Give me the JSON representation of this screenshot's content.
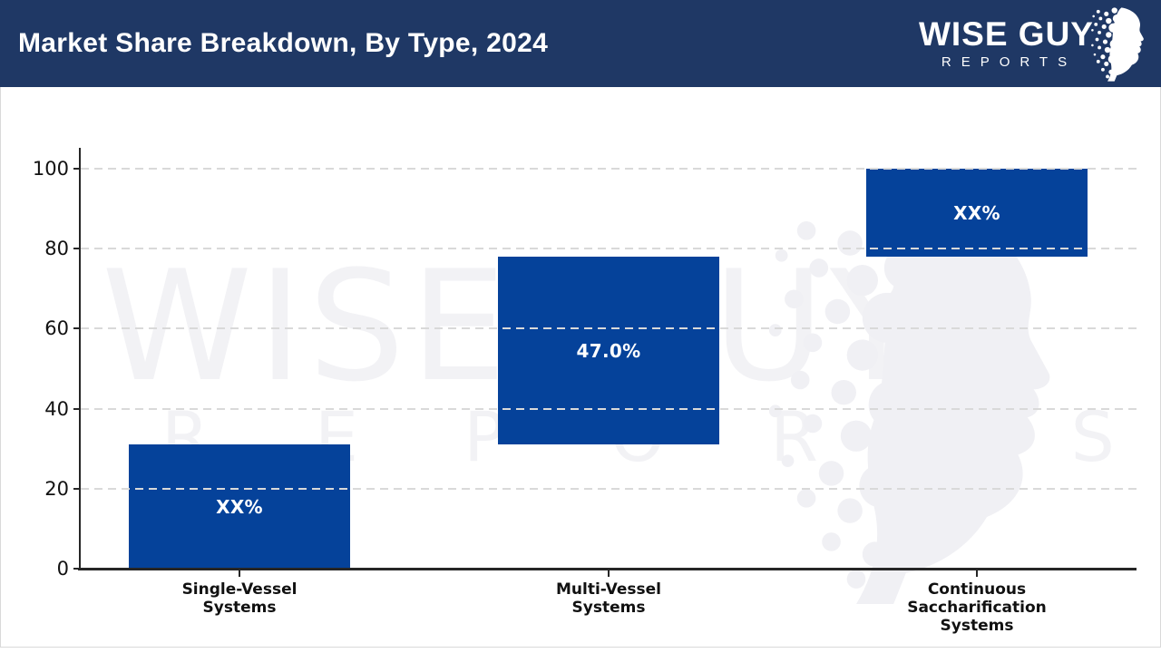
{
  "header": {
    "title": "Market Share Breakdown, By Type, 2024",
    "background": "#1f3865",
    "logo": {
      "wordmark": "WISE GUY",
      "subtitle": "REPORTS"
    }
  },
  "watermark": {
    "wordmark": "WISE GUY",
    "subtitle": "REPORTS"
  },
  "colors": {
    "header_bg": "#1f3865",
    "bar": "#05429a",
    "grid": "#d9d9d9",
    "axis": "#262626",
    "bar_label": "#ffffff",
    "watermark": "#f2f2f5"
  },
  "chart_data": {
    "type": "bar",
    "subtype": "floating-waterfall",
    "title": "Market Share Breakdown, By Type, 2024",
    "categories": [
      "Single-Vessel Systems",
      "Multi-Vessel Systems",
      "Continuous Saccharification Systems"
    ],
    "category_lines": [
      [
        "Single-Vessel",
        "Systems"
      ],
      [
        "Multi-Vessel",
        "Systems"
      ],
      [
        "Continuous",
        "Saccharification",
        "Systems"
      ]
    ],
    "segments": [
      {
        "category": "Single-Vessel Systems",
        "start": 0,
        "end": 31,
        "label": "XX%"
      },
      {
        "category": "Multi-Vessel Systems",
        "start": 31,
        "end": 78,
        "label": "47.0%"
      },
      {
        "category": "Continuous Saccharification Systems",
        "start": 78,
        "end": 100,
        "label": "XX%"
      }
    ],
    "values_shown": [
      "XX%",
      "47.0%",
      "XX%"
    ],
    "y_ticks": [
      0,
      20,
      40,
      60,
      80,
      100
    ],
    "ylim": [
      0,
      105
    ],
    "xlabel": "",
    "ylabel": "",
    "grid": "dashed-horizontal",
    "legend": "none",
    "bar_color": "#05429a"
  }
}
